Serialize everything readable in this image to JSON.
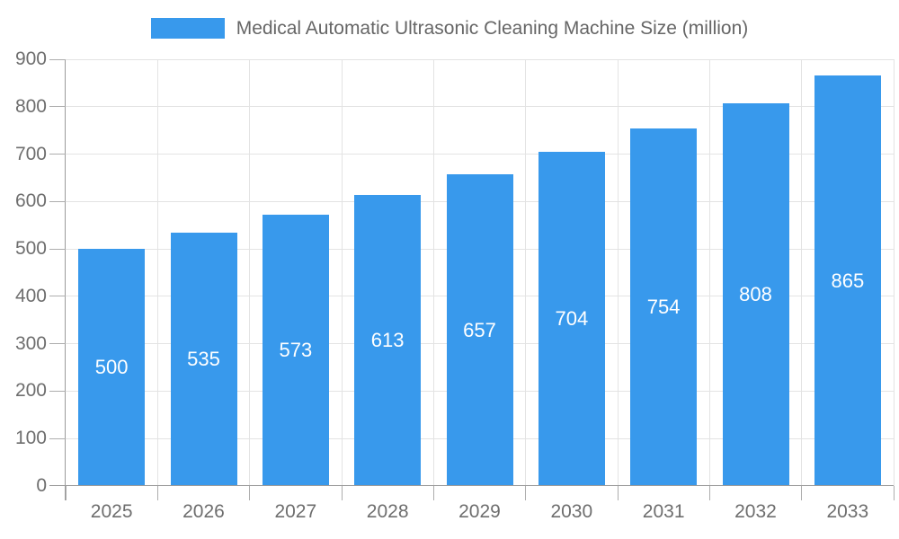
{
  "chart_data": {
    "type": "bar",
    "title": "Medical Automatic Ultrasonic Cleaning Machine Size (million)",
    "categories": [
      "2025",
      "2026",
      "2027",
      "2028",
      "2029",
      "2030",
      "2031",
      "2032",
      "2033"
    ],
    "values": [
      500,
      535,
      573,
      613,
      657,
      704,
      754,
      808,
      865
    ],
    "xlabel": "",
    "ylabel": "",
    "ylim": [
      0,
      900
    ],
    "y_ticks": [
      0,
      100,
      200,
      300,
      400,
      500,
      600,
      700,
      800,
      900
    ],
    "grid": true,
    "legend_position": "top-center",
    "value_labels": "inside-center",
    "colors": {
      "bar": "#3899EC",
      "bar_label": "#FFFFFF",
      "axis_text": "#6E6E6E",
      "legend_text": "#666666",
      "grid_line": "#E3E3E3",
      "axis_line": "#9B9B9B",
      "tick_line": "#ADADAD",
      "background": "#FFFFFF"
    }
  }
}
